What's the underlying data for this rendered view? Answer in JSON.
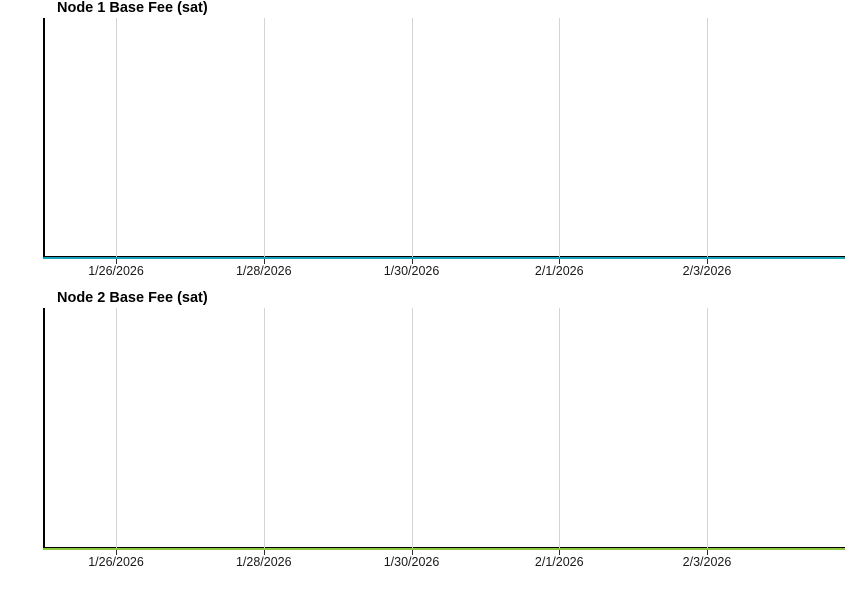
{
  "charts_meta": {
    "background_color": "#ffffff",
    "axis_color": "#000000",
    "gridline_color": "#d4d4d4",
    "tick_label_color": "#1a1a1a"
  },
  "chart_data": [
    {
      "type": "line",
      "title": "Node 1 Base Fee (sat)",
      "x": [
        "1/25/2026",
        "1/26/2026",
        "1/27/2026",
        "1/28/2026",
        "1/29/2026",
        "1/30/2026",
        "1/31/2026",
        "2/1/2026",
        "2/2/2026",
        "2/3/2026",
        "2/4/2026"
      ],
      "series": [
        {
          "name": "Node 1 Base Fee",
          "color": "#17a2b8",
          "values": [
            0,
            0,
            0,
            0,
            0,
            0,
            0,
            0,
            0,
            0,
            0
          ]
        }
      ],
      "x_tick_labels": [
        "1/26/2026",
        "1/28/2026",
        "1/30/2026",
        "2/1/2026",
        "2/3/2026"
      ],
      "y_tick_labels": [],
      "xlabel": "",
      "ylabel": "",
      "ylim": [
        0,
        null
      ],
      "grid": "vertical-only",
      "legend": "none",
      "note": "flat line at 0 along the x-axis"
    },
    {
      "type": "line",
      "title": "Node 2 Base Fee (sat)",
      "x": [
        "1/25/2026",
        "1/26/2026",
        "1/27/2026",
        "1/28/2026",
        "1/29/2026",
        "1/30/2026",
        "1/31/2026",
        "2/1/2026",
        "2/2/2026",
        "2/3/2026",
        "2/4/2026"
      ],
      "series": [
        {
          "name": "Node 2 Base Fee",
          "color": "#8dc63f",
          "values": [
            0,
            0,
            0,
            0,
            0,
            0,
            0,
            0,
            0,
            0,
            0
          ]
        }
      ],
      "x_tick_labels": [
        "1/26/2026",
        "1/28/2026",
        "1/30/2026",
        "2/1/2026",
        "2/3/2026"
      ],
      "y_tick_labels": [],
      "xlabel": "",
      "ylabel": "",
      "ylim": [
        0,
        null
      ],
      "grid": "vertical-only",
      "legend": "none",
      "note": "flat line at 0 along the x-axis"
    }
  ]
}
